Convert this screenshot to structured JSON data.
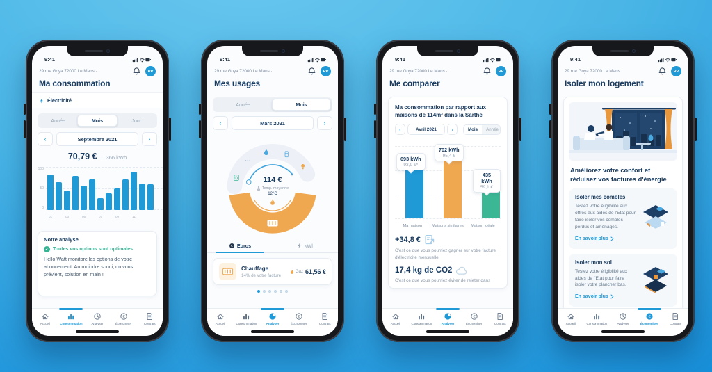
{
  "time": "9:41",
  "address": "29 rue Goya 72000 Le Mans ·",
  "avatar": "RP",
  "nav": [
    "Accueil",
    "Consommation",
    "Analyser",
    "Économiser",
    "Contrats"
  ],
  "icons": {
    "chevron_left": "‹",
    "chevron_right": "›",
    "check": "✓",
    "euro": "€"
  },
  "colors": {
    "accent": "#1f9ad7",
    "navy": "#173a5e",
    "orange": "#f0a850",
    "green": "#3cb795",
    "gray": "#8b99aa"
  },
  "p1": {
    "title": "Ma consommation",
    "energy": "Électricité",
    "tabs": [
      "Année",
      "Mois",
      "Jour"
    ],
    "active_tab": "Mois",
    "period": "Septembre 2021",
    "amount": "70,79 €",
    "energy_total": "366 kWh",
    "chart_data": {
      "type": "bar",
      "title": "Consommation journalière Septembre 2021",
      "ylim": [
        0,
        100
      ],
      "yticks": [
        "100",
        "50",
        "0"
      ],
      "labels": [
        "01",
        "",
        "03",
        "",
        "05",
        "",
        "07",
        "",
        "09",
        "",
        "11",
        "",
        ""
      ],
      "values": [
        82,
        65,
        46,
        79,
        56,
        71,
        28,
        39,
        50,
        71,
        88,
        61,
        60
      ]
    },
    "analysis_title": "Notre analyse",
    "analysis_ok": "Toutes vos options sont optimales",
    "analysis_body": "Hello Watt monitore les options de votre abonnement. Au moindre souci, on vous prévient, solution en main !",
    "active_nav": 1
  },
  "p2": {
    "title": "Mes usages",
    "tabs": [
      "Année",
      "Mois"
    ],
    "active_tab": "Mois",
    "period": "Mars 2021",
    "center_value": "114 €",
    "center_label": "Temp. moyenne",
    "center_temp": "12°C",
    "unit_tabs": [
      "Euros",
      "kWh"
    ],
    "active_unit": "Euros",
    "card": {
      "title": "Chauffage",
      "subtitle": "14% de votre facture",
      "fuel": "Gaz",
      "value": "61,56 €"
    },
    "dots": 6,
    "active_dot": 0,
    "chart_data": {
      "type": "donut",
      "center": "114 €",
      "segments": [
        {
          "name": "chauffage",
          "color": "#f0a850",
          "start": 97,
          "end": 263,
          "value_label": "61,56 €"
        },
        {
          "name": "lave-linge",
          "color": "#edf1f7",
          "start": -85,
          "end": -58,
          "icon": "washing",
          "icon_color": "#3cb795"
        },
        {
          "name": "autres",
          "color": "#edf1f7",
          "start": -54,
          "end": -27,
          "icon": "dots",
          "icon_color": "#8aa0b5"
        },
        {
          "name": "eau",
          "color": "#edf1f7",
          "start": -23,
          "end": 4,
          "icon": "drop",
          "icon_color": "#4aa8e0"
        },
        {
          "name": "froid",
          "color": "#edf1f7",
          "start": 8,
          "end": 35,
          "icon": "fridge",
          "icon_color": "#4aa8e0"
        },
        {
          "name": "eclairage",
          "color": "#edf1f7",
          "start": 39,
          "end": 66,
          "icon": "bulb",
          "icon_color": "#f0a850"
        }
      ]
    },
    "active_nav": 2
  },
  "p3": {
    "title": "Me comparer",
    "card_title": "Ma consommation par rapport aux maisons de 114m² dans la Sarthe",
    "period": "Avril 2021",
    "toggle": [
      "Mois",
      "Année"
    ],
    "active_toggle": "Mois",
    "chart_data": {
      "type": "bar",
      "categories": [
        "Ma maison",
        "Maisons similaires",
        "Maison idéale"
      ],
      "values_kwh": [
        693,
        702,
        435
      ],
      "values_eur": [
        93.9,
        95.4,
        59.1
      ],
      "labels_kwh": [
        "693 kWh",
        "702 kWh",
        "435 kWh"
      ],
      "labels_eur": [
        "93,9 €*",
        "95,4 €",
        "59,1 €"
      ],
      "colors": [
        "#1f9ad7",
        "#f0a850",
        "#3cb795"
      ]
    },
    "saving": "+34,8 €",
    "saving_desc": "C'est ce que vous pourriez gagner sur votre facture d'électricité mensuelle",
    "co2": "17,4 kg de CO2",
    "co2_desc": "C'est ce que vous pourriez éviter de rejeter dans",
    "active_nav": 2
  },
  "p4": {
    "title": "Isoler mon logement",
    "hero_title": "Améliorez votre confort et réduisez vos factures d'énergie",
    "cards": [
      {
        "title": "Isoler mes combles",
        "body": "Testez votre éligibilité aux offres aux aides de l'Etat pour faire isoler vos combles perdus et aménagés.",
        "link": "En savoir plus"
      },
      {
        "title": "Isoler mon sol",
        "body": "Testez votre éligibilité aux aides de l'Etat pour faire isoler votre plancher bas.",
        "link": "En savoir plus"
      }
    ],
    "active_nav": 3
  }
}
